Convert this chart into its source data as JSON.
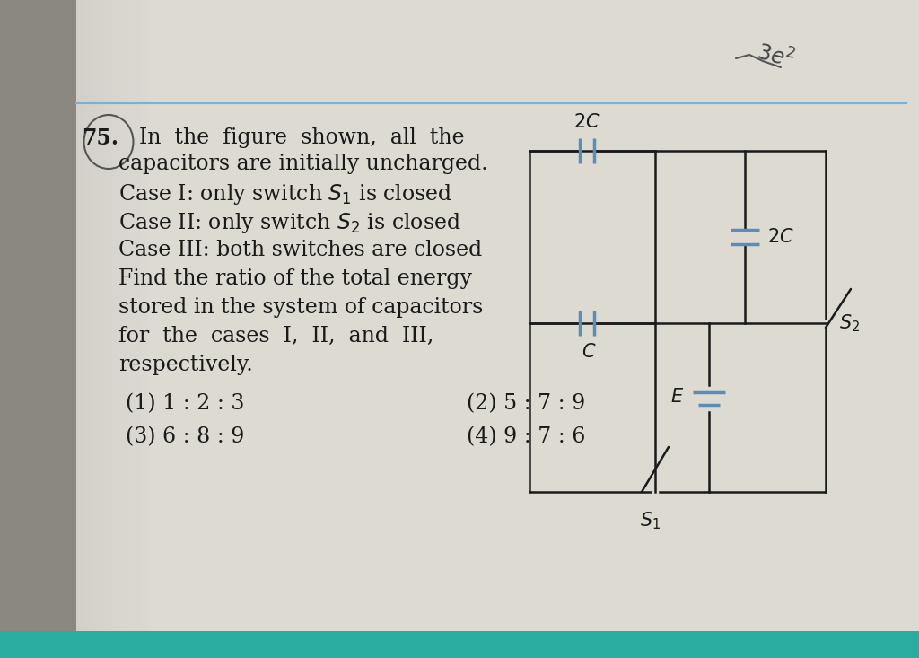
{
  "bg_color": "#c8c4bc",
  "page_color": "#e8e5de",
  "text_color": "#1a1a1a",
  "circuit_color": "#1a1a1a",
  "cap_color": "#5b8db8",
  "teal_color": "#2aada0",
  "blue_line_color": "#7ab0d4",
  "q_num": "75.",
  "line1a": "In  the  figure  shown,  all  the",
  "line1b": "capacitors are initially uncharged.",
  "line2": "Case I: only switch $S_1$ is closed",
  "line3": "Case II: only switch $S_2$ is closed",
  "line4": "Case III: both switches are closed",
  "line5": "Find the ratio of the total energy",
  "line6": "stored in the system of capacitors",
  "line7": "for  the  cases  I,  II,  and  III,",
  "line8": "respectively.",
  "opt1": "(1) 1 : 2 : 3",
  "opt2": "(2) 5 : 7 : 9",
  "opt3": "(3) 6 : 8 : 9",
  "opt4": "(4) 9 : 7 : 6"
}
